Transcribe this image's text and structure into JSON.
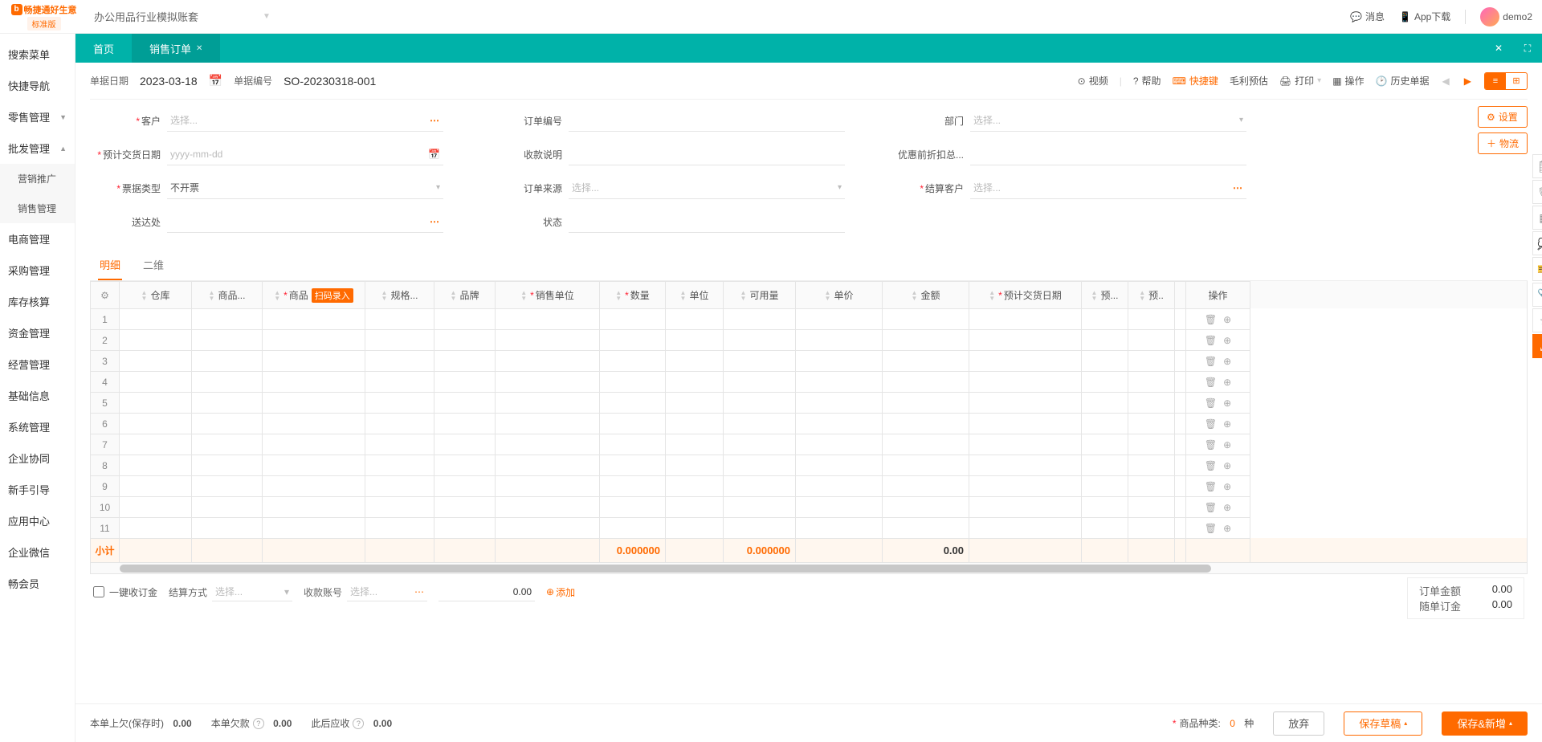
{
  "topbar": {
    "logo_text": "畅捷通好生意",
    "logo_edition": "标准版",
    "account_book": "办公用品行业模拟账套",
    "right": {
      "message": "消息",
      "app_download": "App下载",
      "username": "demo2"
    }
  },
  "leftnav": {
    "items": [
      {
        "label": "搜索菜单",
        "caret": ""
      },
      {
        "label": "快捷导航",
        "caret": ""
      },
      {
        "label": "零售管理",
        "caret": "▼"
      },
      {
        "label": "批发管理",
        "caret": "▲",
        "expanded": true,
        "children": [
          {
            "label": "营销推广"
          },
          {
            "label": "销售管理"
          }
        ]
      },
      {
        "label": "电商管理",
        "caret": ""
      },
      {
        "label": "采购管理",
        "caret": ""
      },
      {
        "label": "库存核算",
        "caret": ""
      },
      {
        "label": "资金管理",
        "caret": ""
      },
      {
        "label": "经营管理",
        "caret": ""
      },
      {
        "label": "基础信息",
        "caret": ""
      },
      {
        "label": "系统管理",
        "caret": ""
      },
      {
        "label": "企业协同",
        "caret": ""
      },
      {
        "label": "新手引导",
        "caret": ""
      },
      {
        "label": "应用中心",
        "caret": ""
      },
      {
        "label": "企业微信",
        "caret": ""
      },
      {
        "label": "畅会员",
        "caret": ""
      }
    ]
  },
  "tabs": {
    "home": "首页",
    "current": "销售订单"
  },
  "doc": {
    "date_label": "单据日期",
    "date_value": "2023-03-18",
    "no_label": "单据编号",
    "no_value": "SO-20230318-001",
    "actions": {
      "video": "视频",
      "help": "帮助",
      "hotkey": "快捷键",
      "profit": "毛利预估",
      "print": "打印",
      "ops": "操作",
      "history": "历史单据"
    }
  },
  "form": {
    "customer": {
      "label": "客户",
      "placeholder": "选择..."
    },
    "order_no": {
      "label": "订单编号"
    },
    "dept": {
      "label": "部门",
      "placeholder": "选择..."
    },
    "deliver_date": {
      "label": "预计交货日期",
      "placeholder": "yyyy-mm-dd"
    },
    "pay_desc": {
      "label": "收款说明"
    },
    "discount": {
      "label": "优惠前折扣总..."
    },
    "invoice": {
      "label": "票据类型",
      "value": "不开票"
    },
    "source": {
      "label": "订单来源",
      "placeholder": "选择..."
    },
    "settle_customer": {
      "label": "结算客户",
      "placeholder": "选择..."
    },
    "ship_to": {
      "label": "送达处"
    },
    "status": {
      "label": "状态"
    },
    "side": {
      "settings": "设置",
      "logistics": "物流"
    }
  },
  "detail_tabs": {
    "detail": "明细",
    "matrix": "二维"
  },
  "grid": {
    "headers": {
      "warehouse": "仓库",
      "product_code": "商品...",
      "product": "商品",
      "scan": "扫码录入",
      "spec": "规格...",
      "brand": "品牌",
      "sale_unit": "销售单位",
      "qty": "数量",
      "unit": "单位",
      "available": "可用量",
      "price": "单价",
      "amount": "金额",
      "deliver_date": "预计交货日期",
      "extra1": "预...",
      "extra2": "预..",
      "action": "操作"
    },
    "row_count": 11,
    "subtotal": {
      "label": "小计",
      "qty": "0.000000",
      "available": "0.000000",
      "amount": "0.00"
    }
  },
  "below": {
    "deposit_chk": "一键收订金",
    "settle_mode_label": "结算方式",
    "settle_mode_placeholder": "选择...",
    "account_label": "收款账号",
    "account_placeholder": "选择...",
    "amount": "0.00",
    "add": "添加",
    "totals": {
      "order_amount_label": "订单金额",
      "order_amount": "0.00",
      "deposit_label": "随单订金",
      "deposit": "0.00"
    }
  },
  "footer": {
    "prev_owe_label": "本单上欠(保存时)",
    "prev_owe": "0.00",
    "this_owe_label": "本单欠款",
    "this_owe": "0.00",
    "after_owe_label": "此后应收",
    "after_owe": "0.00",
    "kinds_label": "商品种类:",
    "kinds_count": "0",
    "kinds_unit": "种",
    "btn_discard": "放弃",
    "btn_draft": "保存草稿",
    "btn_save": "保存&新增"
  }
}
